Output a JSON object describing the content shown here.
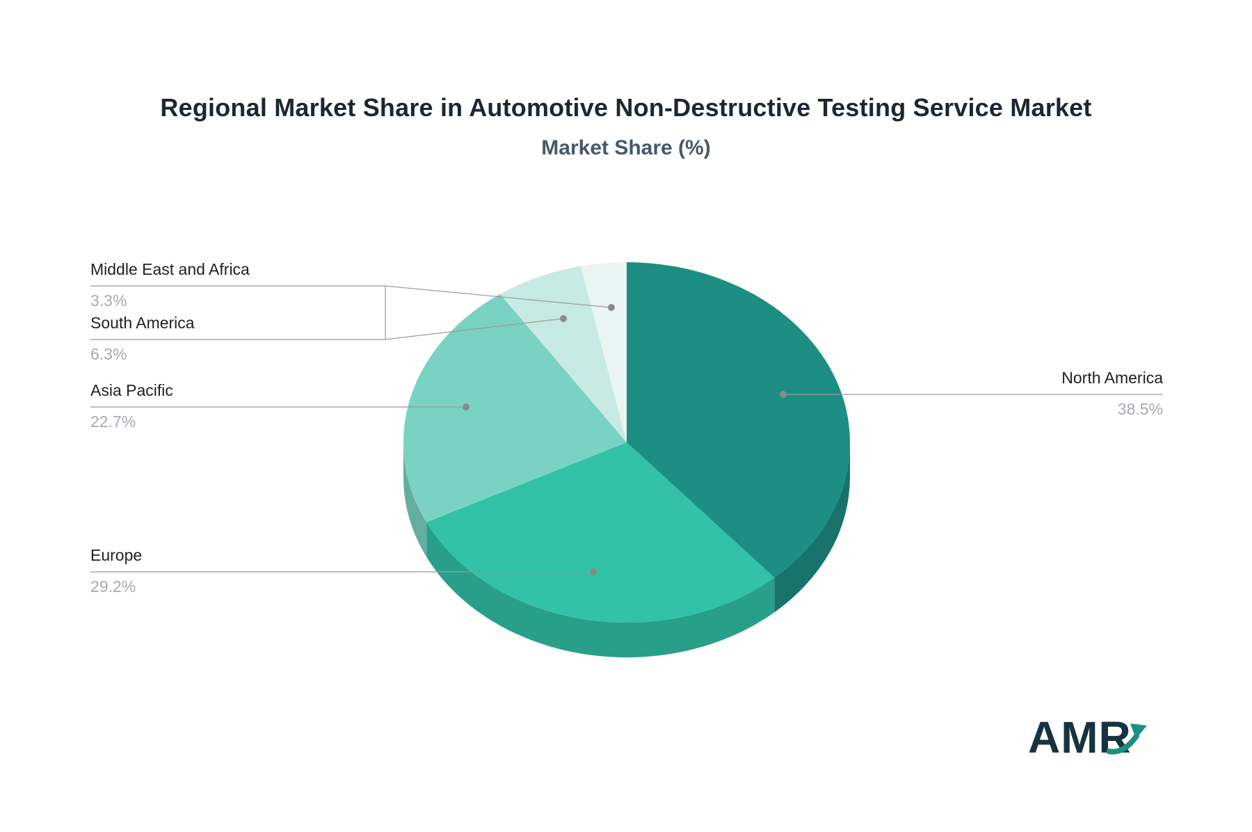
{
  "header": {
    "title": "Regional Market Share in Automotive Non-Destructive Testing Service Market",
    "subtitle": "Market Share (%)"
  },
  "logo": {
    "text": "AMR",
    "arrow_color": "#1d8f81",
    "text_color": "#17333f"
  },
  "chart_data": {
    "type": "pie",
    "style": "3d",
    "title": "Regional Market Share in Automotive Non-Destructive Testing Service Market",
    "subtitle": "Market Share (%)",
    "unit": "%",
    "start_angle_deg": -90,
    "direction": "clockwise",
    "legend_position": "none",
    "slices": [
      {
        "name": "North America",
        "value": 38.5,
        "percent_label": "38.5%",
        "color": "#1d8e82"
      },
      {
        "name": "Europe",
        "value": 29.2,
        "percent_label": "29.2%",
        "color": "#31c2a7"
      },
      {
        "name": "Asia Pacific",
        "value": 22.7,
        "percent_label": "22.7%",
        "color": "#7ad3c2"
      },
      {
        "name": "South America",
        "value": 6.3,
        "percent_label": "6.3%",
        "color": "#c7ebe4"
      },
      {
        "name": "Middle East and Africa",
        "value": 3.3,
        "percent_label": "3.3%",
        "color": "#e8f5f2"
      }
    ],
    "leader_line_color": "#9a9a9a",
    "leader_dot_color": "#8a8a8a"
  }
}
